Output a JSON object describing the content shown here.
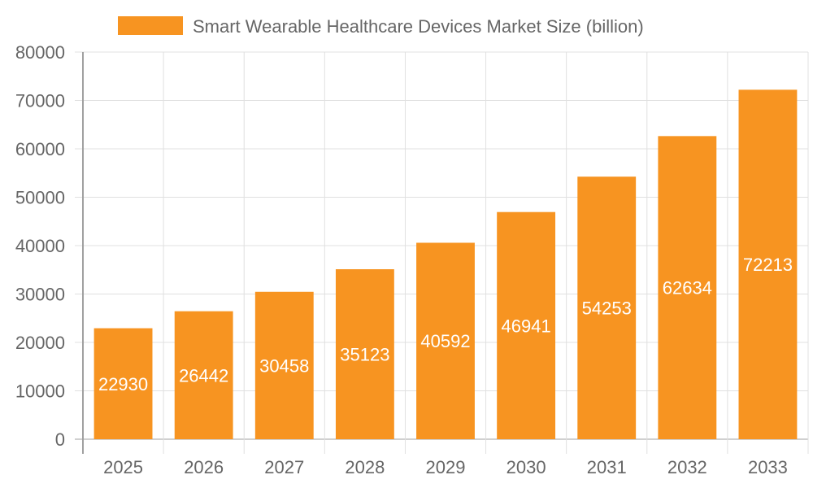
{
  "chart_data": {
    "type": "bar",
    "title": "",
    "xlabel": "",
    "ylabel": "",
    "categories": [
      "2025",
      "2026",
      "2027",
      "2028",
      "2029",
      "2030",
      "2031",
      "2032",
      "2033"
    ],
    "series": [
      {
        "name": "Smart Wearable Healthcare Devices Market Size (billion)",
        "values": [
          22930,
          26442,
          30458,
          35123,
          40592,
          46941,
          54253,
          62634,
          72213
        ]
      }
    ],
    "ylim": [
      0,
      80000
    ],
    "yticks": [
      0,
      10000,
      20000,
      30000,
      40000,
      50000,
      60000,
      70000,
      80000
    ],
    "grid": true,
    "legend_position": "top",
    "data_labels": true,
    "colors": {
      "bar": "#f79421",
      "grid": "#e0e0e0",
      "axis": "#a0a0a0",
      "text": "#666666",
      "label": "#ffffff"
    }
  }
}
